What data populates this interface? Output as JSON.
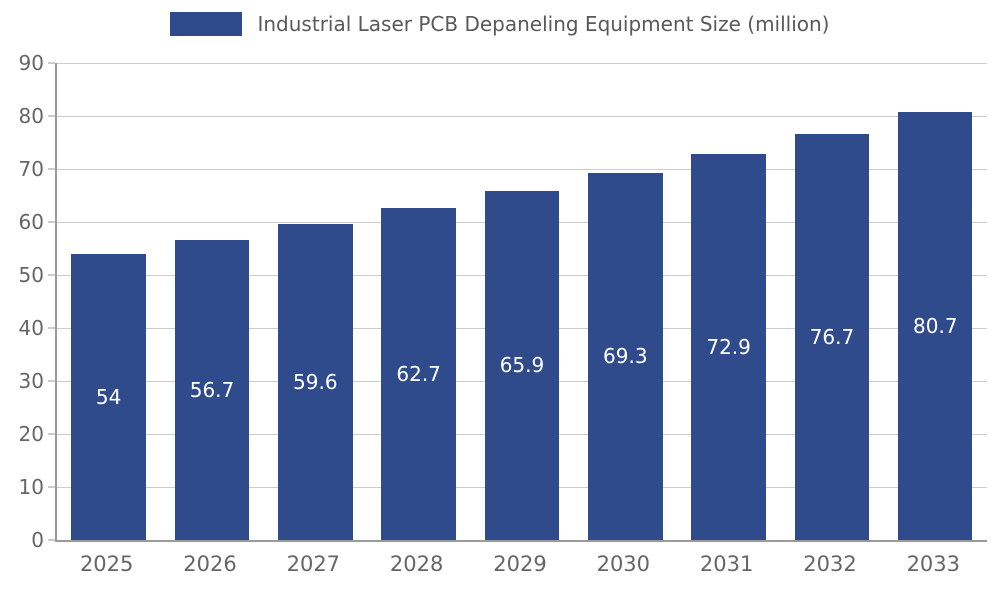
{
  "chart_data": {
    "type": "bar",
    "title": "Industrial Laser PCB Depaneling Equipment Size (million)",
    "categories": [
      "2025",
      "2026",
      "2027",
      "2028",
      "2029",
      "2030",
      "2031",
      "2032",
      "2033"
    ],
    "values": [
      54,
      56.7,
      59.6,
      62.7,
      65.9,
      69.3,
      72.9,
      76.7,
      80.7
    ],
    "xlabel": "",
    "ylabel": "",
    "ylim": [
      0,
      90
    ],
    "ytick_step": 10,
    "grid": true,
    "legend_position": "top",
    "colors": {
      "bar": "#2f4b8c",
      "bar_label": "#ffffff",
      "axis_text": "#666666",
      "title_text": "#595959",
      "gridline": "#cccccc",
      "axis_line": "#9a9a9a",
      "background": "#ffffff"
    }
  }
}
